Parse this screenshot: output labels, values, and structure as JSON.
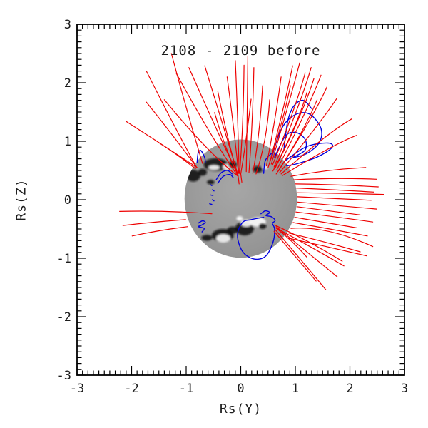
{
  "chart_data": {
    "type": "line",
    "title": "2108 - 2109 before",
    "xlabel": "Rs(Y)",
    "ylabel": "Rs(Z)",
    "xlim": [
      -3,
      3
    ],
    "ylim": [
      -3,
      3
    ],
    "xticks": [
      "-3",
      "-2",
      "-1",
      "0",
      "1",
      "2",
      "3"
    ],
    "yticks": [
      "-3",
      "-2",
      "-1",
      "0",
      "1",
      "2",
      "3"
    ],
    "major_tick_interval": 1,
    "minor_tick_interval": 0.1,
    "grid": false,
    "legend": null,
    "colors": {
      "open_field": "#ee0000",
      "closed_field": "#0000dd",
      "axis": "#000000",
      "sun_center": "#a6a6a6",
      "sun_mid": "#9c9c9c",
      "sun_edge": "#8b8b8b",
      "spot_dark": "#0c0c0c",
      "spot_light": "#fafafa",
      "background": "#ffffff"
    },
    "sun": {
      "center": [
        0,
        0.02
      ],
      "radius_rs": 1.02,
      "spots": [
        {
          "x": -0.87,
          "y": 0.41,
          "rx": 0.13,
          "ry": 0.1,
          "c": "dark"
        },
        {
          "x": -0.7,
          "y": 0.47,
          "rx": 0.08,
          "ry": 0.06,
          "c": "dark"
        },
        {
          "x": -0.46,
          "y": 0.6,
          "rx": 0.22,
          "ry": 0.11,
          "c": "dark"
        },
        {
          "x": -0.49,
          "y": 0.55,
          "rx": 0.1,
          "ry": 0.04,
          "c": "light"
        },
        {
          "x": -0.25,
          "y": 0.56,
          "rx": 0.08,
          "ry": 0.05,
          "c": "light"
        },
        {
          "x": -0.15,
          "y": 0.6,
          "rx": 0.08,
          "ry": 0.06,
          "c": "dark"
        },
        {
          "x": 0.31,
          "y": 0.52,
          "rx": 0.09,
          "ry": 0.06,
          "c": "dark"
        },
        {
          "x": 0.45,
          "y": 0.55,
          "rx": 0.05,
          "ry": 0.03,
          "c": "light"
        },
        {
          "x": 0.07,
          "y": -0.49,
          "rx": 0.17,
          "ry": 0.12,
          "c": "dark"
        },
        {
          "x": 0.1,
          "y": -0.4,
          "rx": 0.1,
          "ry": 0.06,
          "c": "light"
        },
        {
          "x": 0.31,
          "y": -0.38,
          "rx": 0.15,
          "ry": 0.08,
          "c": "light"
        },
        {
          "x": 0.4,
          "y": -0.45,
          "rx": 0.07,
          "ry": 0.05,
          "c": "dark"
        },
        {
          "x": -0.15,
          "y": -0.52,
          "rx": 0.1,
          "ry": 0.06,
          "c": "dark"
        },
        {
          "x": -0.33,
          "y": -0.61,
          "rx": 0.2,
          "ry": 0.11,
          "c": "dark"
        },
        {
          "x": -0.32,
          "y": -0.66,
          "rx": 0.13,
          "ry": 0.07,
          "c": "light"
        },
        {
          "x": -0.62,
          "y": -0.65,
          "rx": 0.1,
          "ry": 0.05,
          "c": "dark"
        },
        {
          "x": -0.02,
          "y": -0.32,
          "rx": 0.06,
          "ry": 0.04,
          "c": "light"
        },
        {
          "x": -0.55,
          "y": 0.3,
          "rx": 0.07,
          "ry": 0.04,
          "c": "dark"
        }
      ]
    },
    "field_lines": {
      "open": [
        [
          -0.05,
          0.4,
          -0.6,
          0.8,
          -1.4,
          1.71
        ],
        [
          -0.05,
          0.4,
          -0.5,
          1.0,
          -1.18,
          2.16
        ],
        [
          -0.05,
          0.42,
          -0.4,
          1.1,
          -0.95,
          2.26
        ],
        [
          -0.05,
          0.42,
          -0.3,
          1.2,
          -0.66,
          2.29
        ],
        [
          -0.06,
          0.44,
          -0.3,
          0.9,
          -0.48,
          1.49
        ],
        [
          -0.06,
          0.44,
          -0.25,
          1.05,
          -0.42,
          1.85
        ],
        [
          -0.04,
          0.45,
          -0.12,
          1.2,
          -0.25,
          2.1
        ],
        [
          -0.03,
          0.45,
          -0.05,
          1.3,
          -0.1,
          2.38
        ],
        [
          -0.02,
          0.45,
          0.05,
          1.3,
          0.06,
          2.3
        ],
        [
          0.0,
          0.44,
          0.1,
          1.0,
          0.19,
          1.72
        ],
        [
          0.1,
          0.48,
          0.12,
          1.5,
          0.13,
          2.45
        ],
        [
          0.15,
          0.46,
          0.22,
          1.3,
          0.24,
          2.26
        ],
        [
          0.22,
          0.45,
          0.35,
          1.1,
          0.4,
          1.95
        ],
        [
          0.28,
          0.44,
          0.48,
          1.0,
          0.53,
          1.71
        ],
        [
          -0.03,
          0.27,
          -0.04,
          0.35,
          -0.05,
          0.42
        ],
        [
          0.02,
          0.3,
          0.01,
          0.37,
          0.0,
          0.44
        ],
        [
          -0.8,
          0.55,
          -1.45,
          0.95,
          -2.1,
          1.34
        ],
        [
          -0.82,
          0.57,
          -1.3,
          1.4,
          -1.73,
          2.2
        ],
        [
          -0.81,
          0.56,
          -1.28,
          1.15,
          -1.73,
          1.67
        ],
        [
          -0.83,
          0.53,
          -1.2,
          0.8,
          -1.51,
          0.98
        ],
        [
          -0.7,
          0.62,
          -1.0,
          1.55,
          -1.27,
          2.5
        ],
        [
          -0.53,
          -0.24,
          -1.4,
          -0.18,
          -2.22,
          -0.2
        ],
        [
          -1.01,
          -0.34,
          -1.6,
          -0.38,
          -2.16,
          -0.44
        ],
        [
          -0.97,
          -0.46,
          -1.5,
          -0.52,
          -1.99,
          -0.62
        ],
        [
          0.92,
          0.4,
          1.6,
          0.52,
          2.29,
          0.55
        ],
        [
          0.97,
          0.34,
          1.75,
          0.38,
          2.49,
          0.35
        ],
        [
          1.0,
          0.27,
          1.78,
          0.26,
          2.52,
          0.22
        ],
        [
          1.01,
          0.2,
          1.75,
          0.17,
          2.44,
          0.13
        ],
        [
          1.03,
          0.12,
          1.85,
          0.11,
          2.62,
          0.09
        ],
        [
          1.04,
          0.05,
          1.73,
          0.02,
          2.39,
          -0.01
        ],
        [
          1.04,
          -0.04,
          1.78,
          -0.1,
          2.49,
          -0.16
        ],
        [
          1.03,
          -0.12,
          1.62,
          -0.19,
          2.19,
          -0.26
        ],
        [
          1.01,
          -0.21,
          1.73,
          -0.29,
          2.42,
          -0.38
        ],
        [
          0.99,
          -0.3,
          1.56,
          -0.39,
          2.12,
          -0.48
        ],
        [
          0.96,
          -0.39,
          1.65,
          -0.5,
          2.32,
          -0.62
        ],
        [
          0.92,
          -0.49,
          1.57,
          -0.44,
          2.42,
          -0.8
        ],
        [
          0.88,
          -0.57,
          1.55,
          -0.72,
          2.19,
          -0.89
        ],
        [
          0.84,
          -0.65,
          1.58,
          -0.8,
          2.31,
          -0.96
        ],
        [
          0.62,
          -0.43,
          1.25,
          -0.7,
          1.86,
          -1.05
        ],
        [
          0.65,
          -0.46,
          1.2,
          -0.88,
          1.77,
          -1.32
        ],
        [
          0.66,
          -0.49,
          1.28,
          -0.8,
          1.89,
          -1.13
        ],
        [
          0.63,
          -0.51,
          1.1,
          -1.02,
          1.56,
          -1.54
        ],
        [
          0.61,
          -0.54,
          1.0,
          -0.97,
          1.38,
          -1.39
        ],
        [
          0.64,
          -0.48,
          0.95,
          -0.7,
          1.21,
          -0.98
        ],
        [
          0.53,
          0.63,
          0.8,
          1.6,
          0.95,
          2.29
        ],
        [
          0.56,
          0.61,
          0.9,
          1.7,
          1.08,
          2.34
        ],
        [
          0.58,
          0.59,
          1.0,
          1.55,
          1.18,
          2.17
        ],
        [
          0.61,
          0.56,
          1.1,
          1.65,
          1.29,
          2.26
        ],
        [
          0.63,
          0.54,
          1.15,
          1.5,
          1.34,
          2.07
        ],
        [
          0.66,
          0.51,
          1.25,
          1.58,
          1.47,
          2.13
        ],
        [
          0.69,
          0.49,
          1.35,
          1.45,
          1.58,
          1.93
        ],
        [
          0.71,
          0.46,
          1.45,
          1.3,
          1.76,
          1.73
        ],
        [
          0.74,
          0.44,
          1.6,
          1.15,
          2.03,
          1.38
        ],
        [
          0.76,
          0.41,
          1.7,
          0.95,
          2.12,
          1.1
        ],
        [
          0.59,
          0.49,
          1.05,
          1.3,
          1.21,
          1.83
        ],
        [
          0.65,
          0.44,
          1.15,
          1.15,
          1.4,
          1.71
        ],
        [
          0.5,
          0.55,
          0.78,
          1.35,
          0.91,
          1.95
        ],
        [
          0.47,
          0.58,
          0.65,
          1.45,
          0.74,
          2.1
        ]
      ],
      "closed": [
        [
          [
            -0.8,
            0.64
          ],
          [
            -0.78,
            0.8
          ],
          [
            -0.73,
            0.84
          ],
          [
            -0.66,
            0.72
          ],
          [
            -0.65,
            0.64
          ]
        ],
        [
          [
            -0.45,
            0.34
          ],
          [
            -0.36,
            0.46
          ],
          [
            -0.24,
            0.5
          ],
          [
            -0.16,
            0.44
          ]
        ],
        [
          [
            -0.42,
            0.28
          ],
          [
            -0.32,
            0.4
          ],
          [
            -0.2,
            0.43
          ],
          [
            -0.14,
            0.38
          ]
        ],
        [
          [
            -0.56,
            0.26
          ],
          [
            -0.53,
            0.24
          ]
        ],
        [
          [
            -0.52,
            0.17
          ],
          [
            -0.49,
            0.15
          ]
        ],
        [
          [
            -0.55,
            0.08
          ],
          [
            -0.51,
            0.07
          ]
        ],
        [
          [
            -0.52,
            0.0
          ],
          [
            -0.49,
            -0.02
          ]
        ],
        [
          [
            -0.57,
            -0.07
          ],
          [
            -0.53,
            -0.08
          ]
        ],
        [
          [
            -0.78,
            -0.4
          ],
          [
            -0.7,
            -0.36
          ],
          [
            -0.65,
            -0.39
          ],
          [
            -0.73,
            -0.44
          ],
          [
            -0.78,
            -0.46
          ],
          [
            -0.67,
            -0.49
          ],
          [
            -0.71,
            -0.55
          ]
        ],
        [
          [
            0.37,
            -0.24
          ],
          [
            0.45,
            -0.19
          ],
          [
            0.53,
            -0.22
          ],
          [
            0.46,
            -0.27
          ],
          [
            0.56,
            -0.29
          ],
          [
            0.63,
            -0.35
          ],
          [
            0.59,
            -0.39
          ]
        ],
        [
          [
            0.42,
            -0.3
          ],
          [
            0.19,
            -0.34
          ],
          [
            0.03,
            -0.39
          ],
          [
            -0.06,
            -0.61
          ],
          [
            0.03,
            -0.88
          ],
          [
            0.23,
            -1.01
          ],
          [
            0.45,
            -0.97
          ],
          [
            0.59,
            -0.73
          ],
          [
            0.62,
            -0.51
          ],
          [
            0.58,
            -0.41
          ]
        ],
        [
          [
            0.56,
            0.71
          ],
          [
            0.75,
            1.22
          ],
          [
            1.01,
            1.46
          ],
          [
            1.27,
            1.46
          ],
          [
            1.47,
            1.22
          ],
          [
            1.44,
            0.98
          ],
          [
            1.21,
            0.79
          ],
          [
            0.92,
            0.71
          ]
        ],
        [
          [
            0.62,
            0.73
          ],
          [
            0.82,
            1.09
          ],
          [
            1.01,
            1.15
          ],
          [
            1.18,
            1.03
          ],
          [
            1.18,
            0.85
          ],
          [
            0.97,
            0.73
          ]
        ],
        [
          [
            0.82,
            0.67
          ],
          [
            1.21,
            0.91
          ],
          [
            1.6,
            0.97
          ],
          [
            1.67,
            0.89
          ],
          [
            1.4,
            0.73
          ],
          [
            1.01,
            0.61
          ],
          [
            0.84,
            0.58
          ]
        ],
        [
          [
            0.79,
            0.85
          ],
          [
            0.86,
            1.34
          ],
          [
            0.97,
            1.6
          ],
          [
            1.14,
            1.7
          ],
          [
            1.3,
            1.56
          ]
        ],
        [
          [
            0.42,
            0.45
          ],
          [
            0.45,
            0.67
          ],
          [
            0.56,
            0.79
          ]
        ]
      ]
    }
  }
}
